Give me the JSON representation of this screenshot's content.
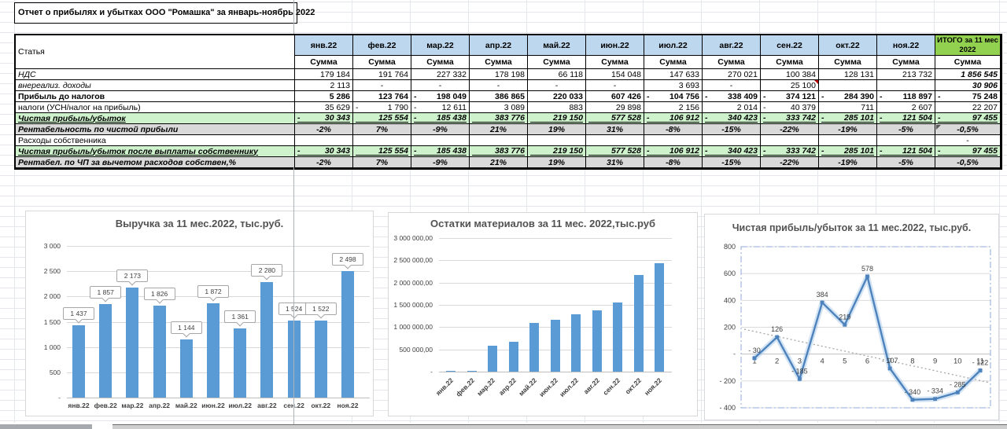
{
  "sheet": {
    "title": "Отчет о прибылях и убытках  ООО \"Ромашка\" за январь-ноябрь 2022"
  },
  "table": {
    "statya": "Статья",
    "sum_label": "Сумма",
    "months": [
      "янв.22",
      "фев.22",
      "мар.22",
      "апр.22",
      "май.22",
      "июн.22",
      "июл.22",
      "авг.22",
      "сен.22",
      "окт.22",
      "ноя.22"
    ],
    "total_header_line1": "ИТОГО за 11 мес",
    "total_header_line2": "2022",
    "rows": [
      {
        "label": "НДС",
        "lcls": "it",
        "tcls": "bi",
        "cells": [
          "179 184",
          "191 764",
          "227 332",
          "178 198",
          "66 118",
          "154 048",
          "147 633",
          "270 021",
          "100 384",
          "128 131",
          "213 732",
          "1 856 545"
        ]
      },
      {
        "label": "внереализ. доходы",
        "lcls": "it",
        "tcls": "bi",
        "comment_cells": [
          8
        ],
        "cells": [
          "2 113",
          "-",
          "-",
          "-",
          "-",
          "-",
          "3 693",
          "-",
          "25 100",
          "",
          "",
          "30 906"
        ]
      },
      {
        "label": "Прибыль до налогов",
        "lcls": "b",
        "vcls": "b",
        "cells": [
          "5 286",
          "123 764",
          "n:198 049",
          "386 865",
          "220 033",
          "607 426",
          "n:104 756",
          "n:338 409",
          "n:374 121",
          "n:284 390",
          "n:118 897",
          "n:75 248"
        ]
      },
      {
        "label": "налоги (УСН/налог на прибыль)",
        "lcls": "",
        "vcls": "",
        "cells": [
          "35 629",
          "n:1 790",
          "n:12 611",
          "3 089",
          "883",
          "29 898",
          "2 156",
          "2 014",
          "n:40 379",
          "711",
          "2 607",
          "22 207"
        ]
      },
      {
        "label": "Чистая прибыль/убыток",
        "bg": "green",
        "lcls": "bi u",
        "vcls": "bi",
        "underline": true,
        "cells": [
          "n:30 343",
          "125 554",
          "n:185 438",
          "383 776",
          "219 150",
          "577 528",
          "n:106 912",
          "n:340 423",
          "n:333 742",
          "n:285 101",
          "n:121 504",
          "n:97 455"
        ]
      },
      {
        "label": "Рентабельность по чистой прибыли",
        "bg": "gray",
        "lcls": "bi",
        "vcls": "bi",
        "center": true,
        "spill_cells": [
          11
        ],
        "cells": [
          "-2%",
          "7%",
          "-9%",
          "21%",
          "19%",
          "31%",
          "-8%",
          "-15%",
          "-22%",
          "-19%",
          "-5%",
          "-0,5%"
        ]
      },
      {
        "label": "Расходы собственника",
        "lcls": "",
        "vcls": "",
        "cells": [
          "",
          "",
          "",
          "",
          "",
          "",
          "",
          "",
          "",
          "",
          "",
          "-"
        ]
      },
      {
        "label": "Чистая прибыль/убыток  после выплаты собственнику",
        "bg": "green",
        "lcls": "bi u",
        "vcls": "bi",
        "underline": true,
        "cells": [
          "n:30 343",
          "125 554",
          "n:185 438",
          "383 776",
          "219 150",
          "577 528",
          "n:106 912",
          "n:340 423",
          "n:333 742",
          "n:285 101",
          "n:121 504",
          "n:97 455"
        ]
      },
      {
        "label": "Рентабел. по ЧП за вычетом расходов собствен,%",
        "bg": "gray",
        "lcls": "bi",
        "vcls": "bi",
        "center": true,
        "cells": [
          "-2%",
          "7%",
          "-9%",
          "21%",
          "19%",
          "31%",
          "-8%",
          "-15%",
          "-22%",
          "-19%",
          "-5%",
          "-0,5%"
        ]
      }
    ]
  },
  "chart_data": [
    {
      "type": "bar",
      "title": "Выручка за 11 мес.2022, тыс.руб.",
      "categories": [
        "янв.22",
        "фев.22",
        "мар.22",
        "апр.22",
        "май.22",
        "июн.22",
        "июл.22",
        "авг.22",
        "сен.22",
        "окт.22",
        "ноя.22"
      ],
      "values": [
        1437,
        1857,
        2173,
        1826,
        1144,
        1872,
        1361,
        2280,
        1524,
        1522,
        2498
      ],
      "data_labels": [
        "1 437",
        "1 857",
        "2 173",
        "1 826",
        "1 144",
        "1 872",
        "1 361",
        "2 280",
        "1 524",
        "1 522",
        "2 498"
      ],
      "ylim": [
        0,
        3000
      ],
      "ytick_labels": [
        "-",
        "500",
        "1 000",
        "1 500",
        "2 000",
        "2 500",
        "3 000"
      ],
      "grid": true,
      "legend": "none",
      "bar_color": "#5B9BD5"
    },
    {
      "type": "bar",
      "title": "Остатки материалов за 11 мес. 2022,тыс.руб",
      "categories": [
        "янв.22",
        "фев.22",
        "мар.22",
        "апр.22",
        "май.22",
        "июн.22",
        "июл.22",
        "авг.22",
        "сен.22",
        "окт.22",
        "ноя.22"
      ],
      "values": [
        15000,
        20000,
        575000,
        670000,
        1090000,
        1170000,
        1290000,
        1380000,
        1560000,
        2170000,
        2430000
      ],
      "ylim": [
        0,
        3000000
      ],
      "ytick_labels": [
        "-",
        "500 000,00",
        "1 000 000,00",
        "1 500 000,00",
        "2 000 000,00",
        "2 500 000,00",
        "3 000 000,00"
      ],
      "grid": true,
      "legend": "none",
      "rotated_x_labels": true,
      "bar_color": "#5B9BD5"
    },
    {
      "type": "line",
      "title": "Чистая прибыль/убыток за 11 мес.2022, тыс.руб.",
      "categories": [
        "1",
        "2",
        "3",
        "4",
        "5",
        "6",
        "7",
        "8",
        "9",
        "10",
        "11"
      ],
      "values": [
        -30,
        126,
        -185,
        384,
        219,
        578,
        -107,
        -340,
        -334,
        -285,
        -122
      ],
      "data_labels": [
        "- 30",
        "126",
        "- 185",
        "384",
        "219",
        "578",
        "- 107",
        "- 340",
        "- 334",
        "- 285",
        "- 122"
      ],
      "ylim": [
        -400,
        800
      ],
      "ytick_labels": [
        "- 400",
        "- 200",
        "-",
        "200",
        "400",
        "600",
        "800"
      ],
      "grid": true,
      "legend": "none",
      "trendline": {
        "style": "dotted",
        "start_value": 185,
        "end_value": -210
      },
      "line_color": "#4D82BC"
    }
  ],
  "colors": {
    "accent_bar": "#5B9BD5",
    "line": "#4D82BC",
    "header_blue": "#BDD7EE",
    "total_green": "#92D050",
    "row_green": "#CDF2CC",
    "row_gray": "#D9D9D9",
    "comment_red": "#C00000"
  }
}
